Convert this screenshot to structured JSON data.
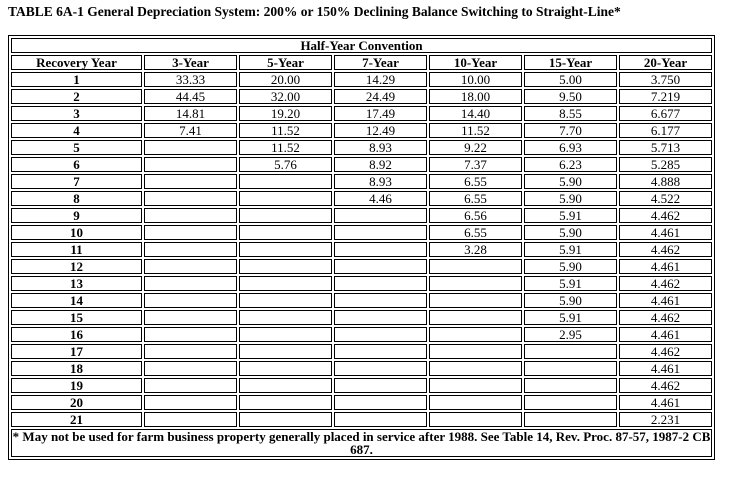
{
  "title": "TABLE 6A-1 General Depreciation System: 200% or 150% Declining Balance Switching to Straight-Line*",
  "table": {
    "caption": "Half-Year Convention",
    "columns": [
      "Recovery Year",
      "3-Year",
      "5-Year",
      "7-Year",
      "10-Year",
      "15-Year",
      "20-Year"
    ],
    "rows": [
      {
        "year": "1",
        "values": [
          "33.33",
          "20.00",
          "14.29",
          "10.00",
          "5.00",
          "3.750"
        ]
      },
      {
        "year": "2",
        "values": [
          "44.45",
          "32.00",
          "24.49",
          "18.00",
          "9.50",
          "7.219"
        ]
      },
      {
        "year": "3",
        "values": [
          "14.81",
          "19.20",
          "17.49",
          "14.40",
          "8.55",
          "6.677"
        ]
      },
      {
        "year": "4",
        "values": [
          "7.41",
          "11.52",
          "12.49",
          "11.52",
          "7.70",
          "6.177"
        ]
      },
      {
        "year": "5",
        "values": [
          "",
          "11.52",
          "8.93",
          "9.22",
          "6.93",
          "5.713"
        ]
      },
      {
        "year": "6",
        "values": [
          "",
          "5.76",
          "8.92",
          "7.37",
          "6.23",
          "5.285"
        ]
      },
      {
        "year": "7",
        "values": [
          "",
          "",
          "8.93",
          "6.55",
          "5.90",
          "4.888"
        ]
      },
      {
        "year": "8",
        "values": [
          "",
          "",
          "4.46",
          "6.55",
          "5.90",
          "4.522"
        ]
      },
      {
        "year": "9",
        "values": [
          "",
          "",
          "",
          "6.56",
          "5.91",
          "4.462"
        ]
      },
      {
        "year": "10",
        "values": [
          "",
          "",
          "",
          "6.55",
          "5.90",
          "4.461"
        ]
      },
      {
        "year": "11",
        "values": [
          "",
          "",
          "",
          "3.28",
          "5.91",
          "4.462"
        ]
      },
      {
        "year": "12",
        "values": [
          "",
          "",
          "",
          "",
          "5.90",
          "4.461"
        ]
      },
      {
        "year": "13",
        "values": [
          "",
          "",
          "",
          "",
          "5.91",
          "4.462"
        ]
      },
      {
        "year": "14",
        "values": [
          "",
          "",
          "",
          "",
          "5.90",
          "4.461"
        ]
      },
      {
        "year": "15",
        "values": [
          "",
          "",
          "",
          "",
          "5.91",
          "4.462"
        ]
      },
      {
        "year": "16",
        "values": [
          "",
          "",
          "",
          "",
          "2.95",
          "4.461"
        ]
      },
      {
        "year": "17",
        "values": [
          "",
          "",
          "",
          "",
          "",
          "4.462"
        ]
      },
      {
        "year": "18",
        "values": [
          "",
          "",
          "",
          "",
          "",
          "4.461"
        ]
      },
      {
        "year": "19",
        "values": [
          "",
          "",
          "",
          "",
          "",
          "4.462"
        ]
      },
      {
        "year": "20",
        "values": [
          "",
          "",
          "",
          "",
          "",
          "4.461"
        ]
      },
      {
        "year": "21",
        "values": [
          "",
          "",
          "",
          "",
          "",
          "2.231"
        ]
      }
    ],
    "footnote": "* May not be used for farm business property generally placed in service after 1988. See Table 14, Rev. Proc. 87-57, 1987-2 CB 687."
  },
  "colors": {
    "text": "#000000",
    "background": "#ffffff",
    "border": "#000000"
  }
}
